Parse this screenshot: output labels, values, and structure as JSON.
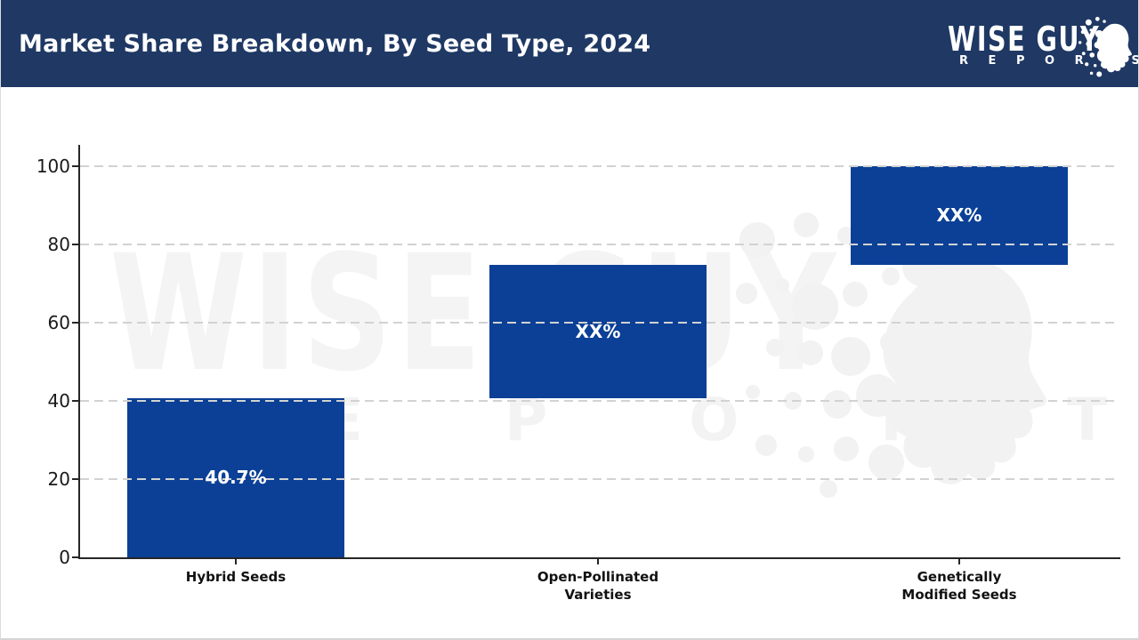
{
  "header": {
    "title": "Market Share Breakdown, By Seed Type, 2024",
    "logo": {
      "wordmark": "WISE GUY",
      "sub": "R E P O R T S"
    }
  },
  "watermark": {
    "wordmark": "WISE GUY",
    "sub": "R E P O R T S"
  },
  "chart_data": {
    "type": "bar",
    "variant": "waterfall",
    "title": "Market Share Breakdown, By Seed Type, 2024",
    "xlabel": "",
    "ylabel": "",
    "ylim": [
      0,
      105
    ],
    "yticks": [
      0,
      20,
      40,
      60,
      80,
      100
    ],
    "grid": "horizontal-dashed",
    "legend": "none",
    "categories": [
      "Hybrid Seeds",
      "Open-Pollinated Varieties",
      "Genetically Modified Seeds"
    ],
    "category_lines": [
      [
        "Hybrid Seeds"
      ],
      [
        "Open-Pollinated",
        "Varieties"
      ],
      [
        "Genetically",
        "Modified Seeds"
      ]
    ],
    "values": [
      40.7,
      34.1,
      25.2
    ],
    "segments": [
      {
        "category": "Hybrid Seeds",
        "start": 0,
        "end": 40.7,
        "label": "40.7%"
      },
      {
        "category": "Open-Pollinated Varieties",
        "start": 40.7,
        "end": 74.8,
        "label": "XX%"
      },
      {
        "category": "Genetically Modified Seeds",
        "start": 74.8,
        "end": 100,
        "label": "XX%"
      }
    ]
  },
  "colors": {
    "header_bg": "#1f3864",
    "bar": "#0b4096",
    "gridline": "#d2d2d2",
    "axis": "#262626",
    "watermark": "#f3f3f3",
    "bar_label_text": "#ffffff",
    "title_text": "#ffffff"
  }
}
